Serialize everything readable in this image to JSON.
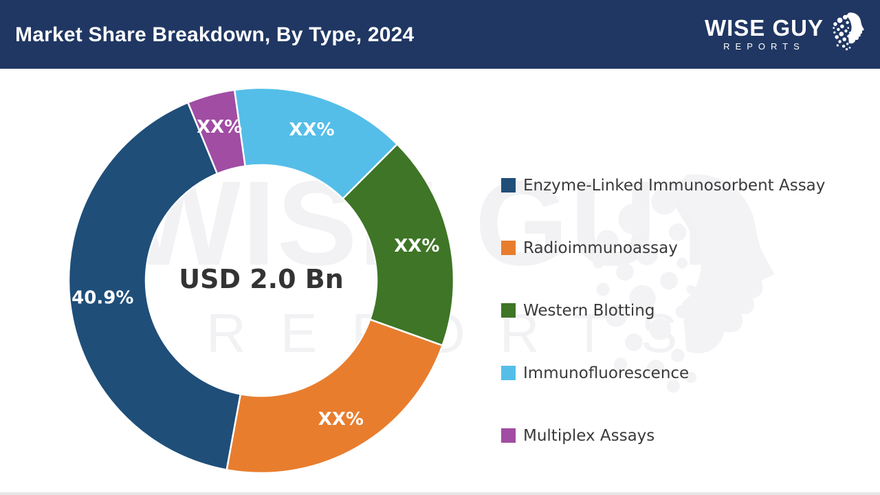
{
  "header": {
    "title": "Market Share Breakdown, By Type, 2024",
    "bg_color": "#203763",
    "logo": {
      "line1": "WISE GUY",
      "line2": "REPORTS"
    }
  },
  "watermark": {
    "line1": "WISE GUY",
    "line2": "REPORTS"
  },
  "center_label": "USD 2.0 Bn",
  "chart_data": {
    "type": "pie",
    "title": "Market Share Breakdown, By Type, 2024",
    "center_label": "USD 2.0 Bn",
    "donut_hole_ratio": 0.6,
    "legend_position": "right",
    "start_angle_deg_cw_from_top": -8,
    "draw_order_clockwise": [
      3,
      2,
      1,
      0,
      4
    ],
    "series": [
      {
        "name": "Enzyme-Linked Immunosorbent Assay",
        "value": 40.9,
        "display_label": "40.9%",
        "color": "#1F4E79"
      },
      {
        "name": "Radioimmunoassay",
        "value": 22.4,
        "display_label": "XX%",
        "color": "#E87D2E"
      },
      {
        "name": "Western Blotting",
        "value": 18.0,
        "display_label": "XX%",
        "color": "#3E7526"
      },
      {
        "name": "Immunofluorescence",
        "value": 14.7,
        "display_label": "XX%",
        "color": "#54BEE8"
      },
      {
        "name": "Multiplex Assays",
        "value": 4.0,
        "display_label": "XX%",
        "color": "#A04DA3"
      }
    ]
  }
}
